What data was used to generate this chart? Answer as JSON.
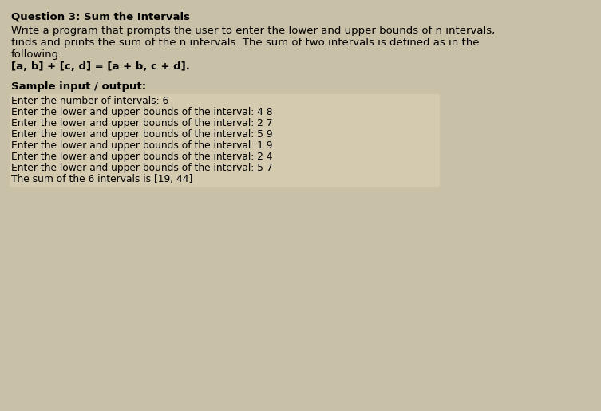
{
  "background_color": "#c9c0a8",
  "sample_box_color": "#d4cab0",
  "title": "Question 3: Sum the Intervals",
  "description_lines": [
    "Write a program that prompts the user to enter the lower and upper bounds of n intervals,",
    "finds and prints the sum of the n intervals. The sum of two intervals is defined as in the",
    "following:",
    "[a, b] + [c, d] = [a + b, c + d]."
  ],
  "sample_header": "Sample input / output:",
  "sample_lines": [
    "Enter the number of intervals: 6",
    "Enter the lower and upper bounds of the interval: 4 8",
    "Enter the lower and upper bounds of the interval: 2 7",
    "Enter the lower and upper bounds of the interval: 5 9",
    "Enter the lower and upper bounds of the interval: 1 9",
    "Enter the lower and upper bounds of the interval: 2 4",
    "Enter the lower and upper bounds of the interval: 5 7",
    "The sum of the 6 intervals is [19, 44]"
  ],
  "title_fontsize": 9.5,
  "desc_fontsize": 9.5,
  "sample_header_fontsize": 9.5,
  "sample_fontsize": 8.8,
  "fig_width": 7.53,
  "fig_height": 5.15,
  "dpi": 100
}
